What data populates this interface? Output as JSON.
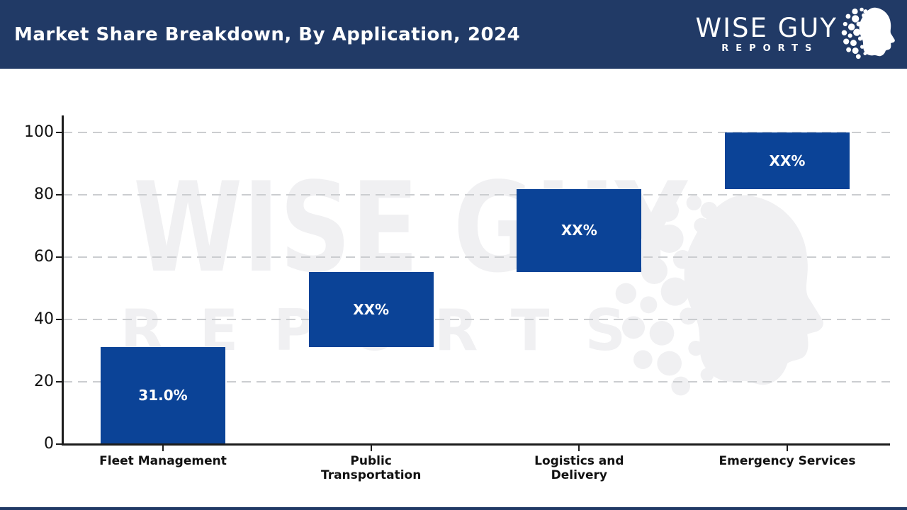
{
  "header": {
    "title": "Market Share Breakdown, By Application, 2024",
    "logo": {
      "line1": "WISE GUY",
      "line2": "REPORTS"
    }
  },
  "watermark": {
    "line1": "WISE GUY",
    "line2": "REPORTS"
  },
  "colors": {
    "header_bg": "#213a66",
    "bar": "#0b4397",
    "bar_label_text": "#ffffff",
    "grid": "#cbcdd0",
    "axis": "#1c1c1c",
    "watermark": "#f0f0f2",
    "title_text": "#ffffff"
  },
  "chart_data": {
    "type": "bar",
    "subtype": "waterfall-floating-bars",
    "title": "Market Share Breakdown, By Application, 2024",
    "categories": [
      "Fleet Management",
      "Public Transportation",
      "Logistics and Delivery",
      "Emergency Services"
    ],
    "category_lines": [
      [
        "Fleet Management"
      ],
      [
        "Public",
        "Transportation"
      ],
      [
        "Logistics and",
        "Delivery"
      ],
      [
        "Emergency Services"
      ]
    ],
    "segments": [
      {
        "category": "Fleet Management",
        "start": 0,
        "end": 31,
        "label": "31.0%"
      },
      {
        "category": "Public Transportation",
        "start": 31,
        "end": 55.2,
        "label": "XX%"
      },
      {
        "category": "Logistics and Delivery",
        "start": 55.2,
        "end": 81.8,
        "label": "XX%"
      },
      {
        "category": "Emergency Services",
        "start": 81.8,
        "end": 100,
        "label": "XX%"
      }
    ],
    "xlabel": "",
    "ylabel": "",
    "ylim": [
      0,
      105
    ],
    "yticks": [
      0,
      20,
      40,
      60,
      80,
      100
    ],
    "grid": "horizontal dashed, drawn over bars",
    "legend": "none"
  }
}
